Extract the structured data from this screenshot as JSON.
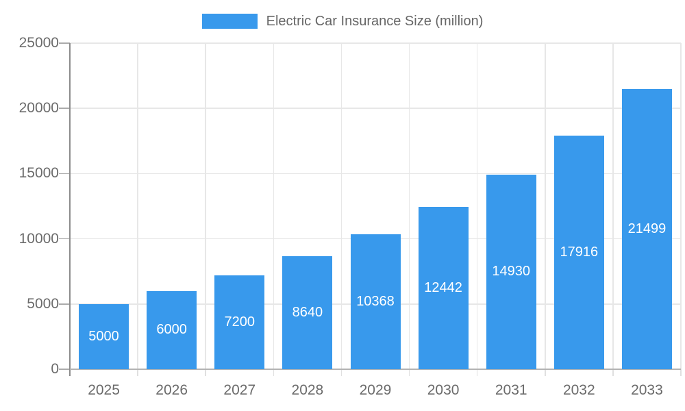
{
  "chart_data": {
    "type": "bar",
    "title": "Electric Car Insurance Size (million)",
    "categories": [
      "2025",
      "2026",
      "2027",
      "2028",
      "2029",
      "2030",
      "2031",
      "2032",
      "2033"
    ],
    "series": [
      {
        "name": "Electric Car Insurance Size (million)",
        "values": [
          5000,
          6000,
          7200,
          8640,
          10368,
          12442,
          14930,
          17916,
          21499
        ]
      }
    ],
    "value_labels": [
      "5000",
      "6000",
      "7200",
      "8640",
      "10368",
      "12442",
      "14930",
      "17916",
      "21499"
    ],
    "ytick_labels": [
      "0",
      "5000",
      "10000",
      "15000",
      "20000",
      "25000"
    ],
    "ylim": [
      0,
      25000
    ],
    "ytick_step": 5000,
    "grid": true,
    "legend_position": "top-center",
    "xlabel": "",
    "ylabel": "",
    "colors": {
      "bar": "#3899EC",
      "value_label": "#FFFFFF",
      "axis_text": "#6B6B6B",
      "legend_text": "#666666",
      "gridline": "#E7E7E7",
      "y_axis_line": "#8C8C8C",
      "x_axis_line": "#B3B3B3",
      "y_tick": "#ABABAB",
      "x_tick": "#E0E0E0",
      "background": "#FFFFFF"
    }
  }
}
